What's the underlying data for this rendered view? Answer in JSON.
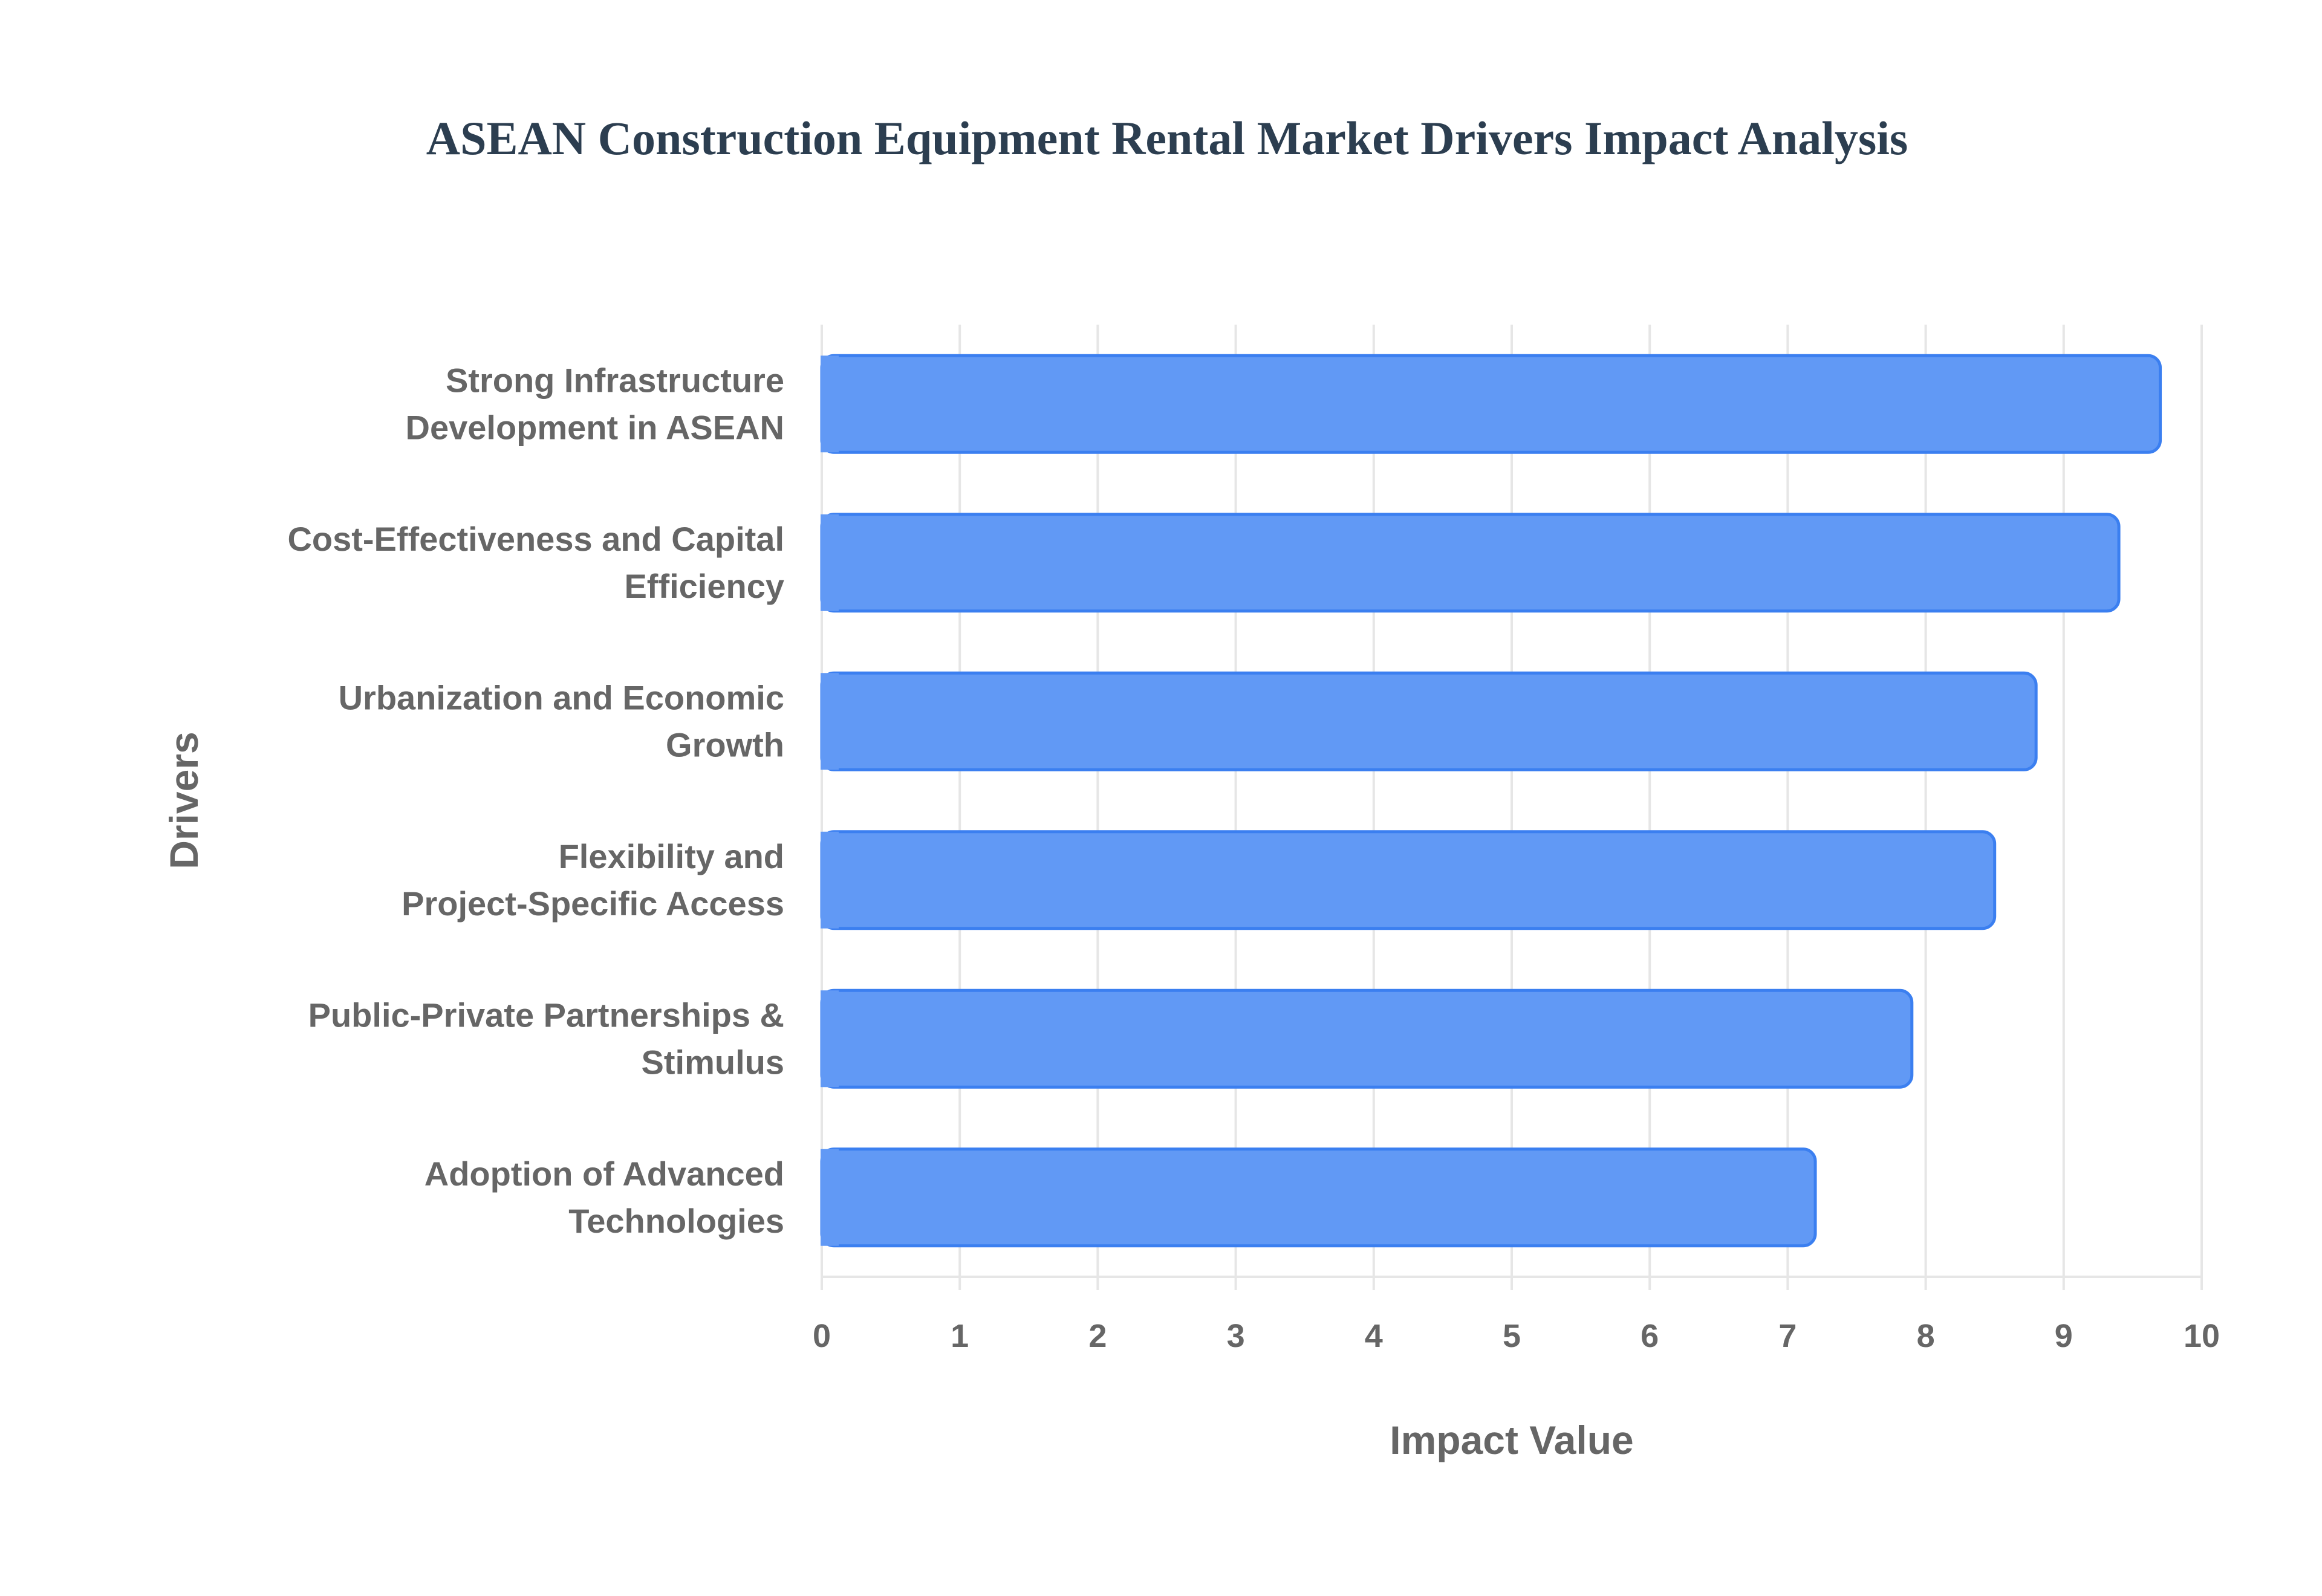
{
  "chart_data": {
    "type": "bar",
    "orientation": "horizontal",
    "title": "ASEAN Construction Equipment Rental Market Drivers Impact Analysis",
    "xlabel": "Impact Value",
    "ylabel": "Drivers",
    "xlim": [
      0,
      10
    ],
    "xticks": [
      "0",
      "1",
      "2",
      "3",
      "4",
      "5",
      "6",
      "7",
      "8",
      "9",
      "10"
    ],
    "grid": true,
    "categories": [
      [
        "Strong Infrastructure",
        "Development in ASEAN"
      ],
      [
        "Cost-Effectiveness and Capital",
        "Efficiency"
      ],
      [
        "Urbanization and Economic",
        "Growth"
      ],
      [
        "Flexibility and",
        "Project-Specific Access"
      ],
      [
        "Public-Private Partnerships &",
        "Stimulus"
      ],
      [
        "Adoption of Advanced",
        "Technologies"
      ]
    ],
    "values": [
      9.7,
      9.4,
      8.8,
      8.5,
      7.9,
      7.2
    ],
    "colors": {
      "bar_fill": "#6199f5",
      "bar_border": "#3b7ff0",
      "grid": "#e6e6e6"
    }
  }
}
